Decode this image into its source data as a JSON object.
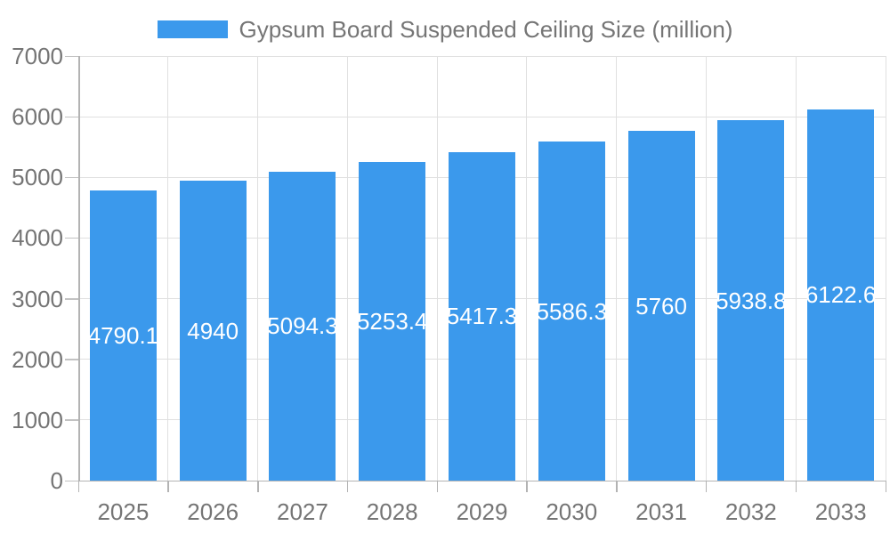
{
  "chart_data": {
    "type": "bar",
    "title": "",
    "legend": {
      "position": "top",
      "label": "Gypsum Board Suspended Ceiling Size (million)"
    },
    "categories": [
      "2025",
      "2026",
      "2027",
      "2028",
      "2029",
      "2030",
      "2031",
      "2032",
      "2033"
    ],
    "series": [
      {
        "name": "Gypsum Board Suspended Ceiling Size (million)",
        "values": [
          4790.1,
          4940,
          5094.3,
          5253.4,
          5417.3,
          5586.3,
          5760,
          5938.8,
          6122.6
        ],
        "value_labels": [
          "4790.1",
          "4940",
          "5094.3",
          "5253.4",
          "5417.3",
          "5586.3",
          "5760",
          "5938.8",
          "6122.6"
        ]
      }
    ],
    "xlabel": "",
    "ylabel": "",
    "ylim": [
      0,
      7000
    ],
    "y_ticks": [
      0,
      1000,
      2000,
      3000,
      4000,
      5000,
      6000,
      7000
    ],
    "grid": {
      "horizontal": true,
      "vertical": true
    },
    "colors": {
      "bar": "#3B99EC",
      "axis_text": "#757575",
      "value_label_text": "#ffffff",
      "grid_line": "#e0e0e0",
      "axis_line": "#b3b3b3",
      "tick": "#c2c2c2",
      "background": "#ffffff"
    }
  }
}
